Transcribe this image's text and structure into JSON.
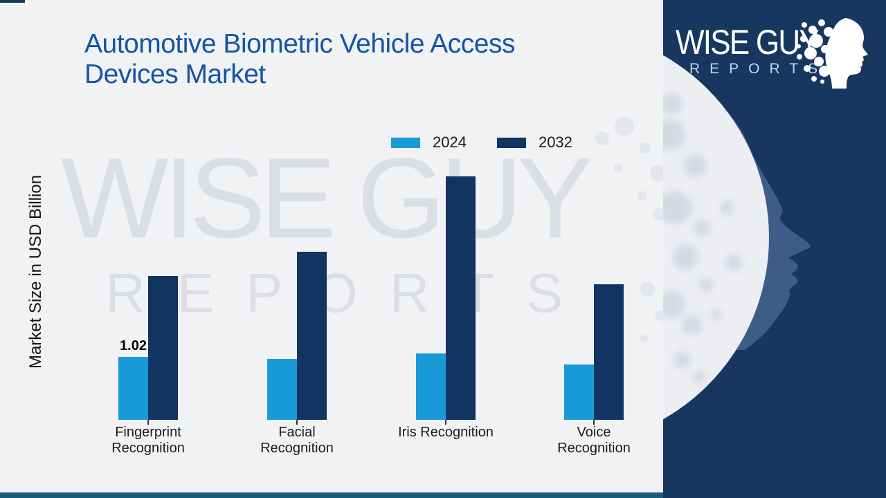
{
  "header": {
    "title_line1": "Automotive Biometric Vehicle Access",
    "title_line2": "Devices Market",
    "title_color": "#1553a5"
  },
  "logo": {
    "brand_top": "WISE GUY",
    "brand_bottom": "REPORTS",
    "face_icon": "wiseguy-head-profile-icon"
  },
  "watermark": {
    "line1": "WISE GUY",
    "line2": "REPORTS"
  },
  "colors": {
    "background": "#f1f2f4",
    "panel_navy": "#173660",
    "bar_2024_blue": "#189ad6",
    "bar_2032_navy": "#123462",
    "teal_strip": "#1b5e7b",
    "watermark_gray": "#dbdee5",
    "face_profile_blue": "#3d5c88",
    "head_circle_light": "#eceef2"
  },
  "chart_data": {
    "type": "bar",
    "title": "Automotive Biometric Vehicle Access Devices Market",
    "ylabel": "Market Size in USD Billion",
    "xlabel": "",
    "ylim": [
      0,
      4.2
    ],
    "grid": false,
    "legend_position": "top-center",
    "categories": [
      "Fingerprint Recognition",
      "Facial Recognition",
      "Iris Recognition",
      "Voice Recognition"
    ],
    "series": [
      {
        "name": "2024",
        "color": "#189ad6",
        "values": [
          1.02,
          0.99,
          1.08,
          0.9
        ]
      },
      {
        "name": "2032",
        "color": "#123462",
        "values": [
          2.33,
          2.72,
          3.95,
          2.2
        ]
      }
    ],
    "data_labels": [
      {
        "series": "2024",
        "category": "Fingerprint Recognition",
        "text": "1.02"
      }
    ]
  },
  "legend": [
    {
      "label": "2024",
      "color": "#189ad6"
    },
    {
      "label": "2032",
      "color": "#123462"
    }
  ]
}
